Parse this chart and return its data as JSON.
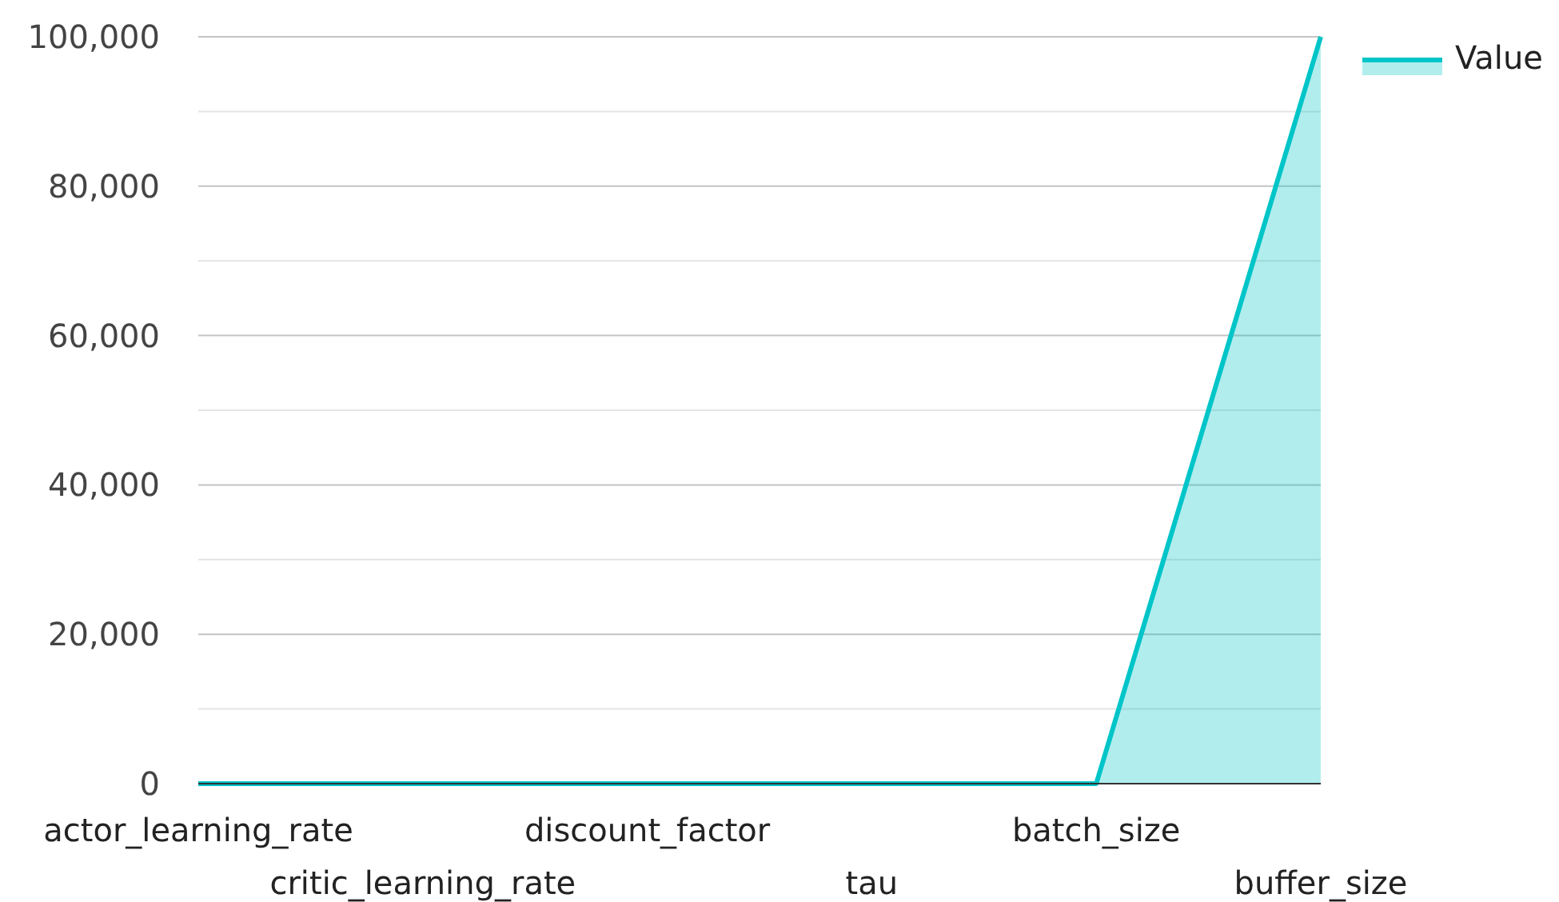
{
  "chart_data": {
    "type": "area",
    "categories": [
      "actor_learning_rate",
      "critic_learning_rate",
      "discount_factor",
      "tau",
      "batch_size",
      "buffer_size"
    ],
    "series": [
      {
        "name": "Value",
        "color": "#00c5c8",
        "values": [
          0,
          0,
          0,
          0,
          0,
          100000
        ]
      }
    ],
    "ylim": [
      0,
      100000
    ],
    "yticks": [
      0,
      {
        "value": 10000,
        "label": null
      },
      {
        "value": 20000,
        "label": "20,000"
      },
      {
        "value": 30000,
        "label": null
      },
      {
        "value": 40000,
        "label": "40,000"
      },
      {
        "value": 50000,
        "label": null
      },
      {
        "value": 60000,
        "label": "60,000"
      },
      {
        "value": 70000,
        "label": null
      },
      {
        "value": 80000,
        "label": "80,000"
      },
      {
        "value": 90000,
        "label": null
      },
      {
        "value": 100000,
        "label": "100,000"
      }
    ],
    "grid": "y",
    "legend": "top right"
  }
}
